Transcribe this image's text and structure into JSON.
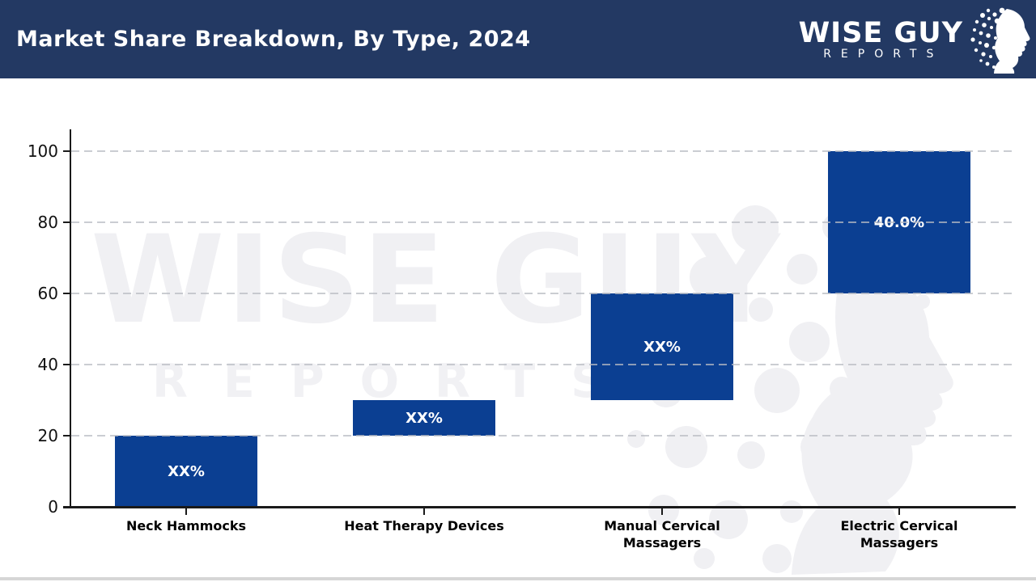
{
  "header": {
    "title": "Market Share Breakdown, By Type, 2024",
    "logo": {
      "line1": "WISE GUY",
      "line2": "REPORTS"
    }
  },
  "watermark": {
    "line1": "WISE GUY",
    "line2": "REPORTS"
  },
  "chart_data": {
    "type": "bar",
    "subtype": "waterfall",
    "title": "Market Share Breakdown, By Type, 2024",
    "categories": [
      "Neck Hammocks",
      "Heat Therapy Devices",
      "Manual Cervical Massagers",
      "Electric Cervical Massagers"
    ],
    "segments": [
      {
        "category": "Neck Hammocks",
        "start": 0,
        "end": 20,
        "label": "XX%"
      },
      {
        "category": "Heat Therapy Devices",
        "start": 20,
        "end": 30,
        "label": "XX%"
      },
      {
        "category": "Manual Cervical Massagers",
        "start": 30,
        "end": 60,
        "label": "XX%"
      },
      {
        "category": "Electric Cervical Massagers",
        "start": 60,
        "end": 100,
        "label": "40.0%"
      }
    ],
    "xlabel": "",
    "ylabel": "",
    "yticks": [
      0,
      20,
      40,
      60,
      80,
      100
    ],
    "ylim": [
      0,
      106
    ],
    "grid": "horizontal-dashed",
    "legend": null,
    "colors": {
      "bar": "#0b3f92",
      "bar_label": "#ffffff",
      "header_bg": "#233963",
      "grid": "#c9cbd1",
      "axis": "#1a1a1a",
      "watermark": "#f0f0f3"
    }
  }
}
